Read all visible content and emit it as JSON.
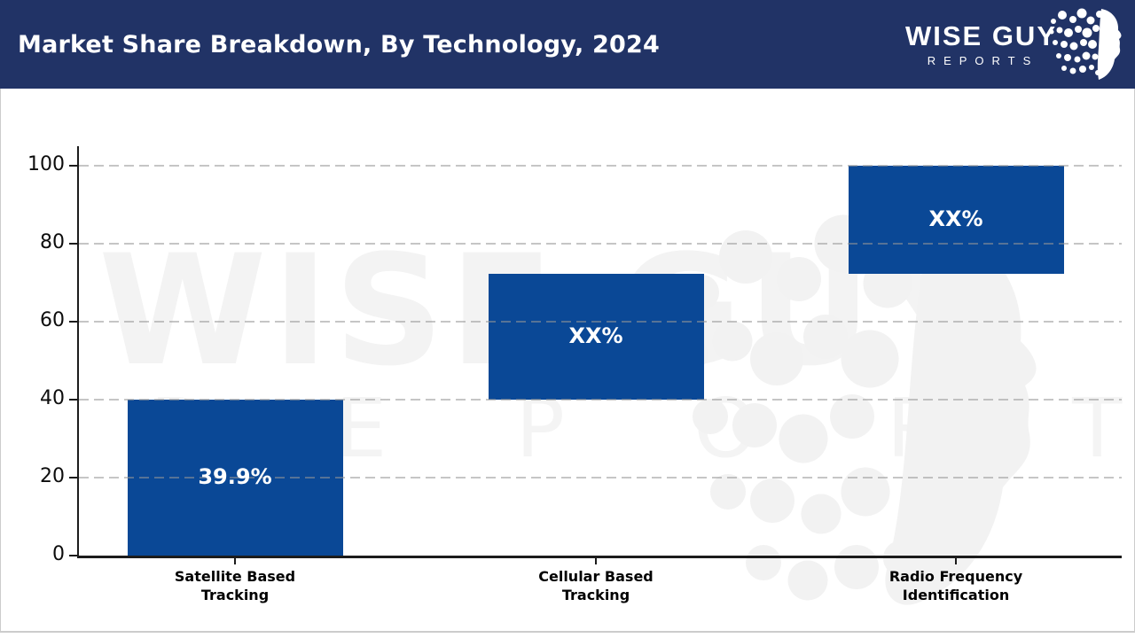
{
  "header": {
    "title": "Market Share Breakdown, By Technology, 2024",
    "bg_color": "#213366",
    "logo": {
      "line1": "WISE GUY",
      "line2": "REPORTS"
    }
  },
  "watermark": {
    "line1": "WISE GUY",
    "line2": "REPORTS"
  },
  "chart_data": {
    "type": "bar",
    "subtype": "waterfall-breakdown",
    "title": "Market Share Breakdown, By Technology, 2024",
    "categories": [
      "Satellite Based Tracking",
      "Cellular Based Tracking",
      "Radio Frequency Identification"
    ],
    "category_label_lines": [
      [
        "Satellite Based",
        "Tracking"
      ],
      [
        "Cellular Based",
        "Tracking"
      ],
      [
        "Radio Frequency",
        "Identification"
      ]
    ],
    "segments": [
      {
        "category": "Satellite Based Tracking",
        "start": 0,
        "end": 39.9,
        "value": 39.9,
        "label": "39.9%"
      },
      {
        "category": "Cellular Based Tracking",
        "start": 39.9,
        "end": 72.3,
        "value": 32.4,
        "label": "XX%"
      },
      {
        "category": "Radio Frequency Identification",
        "start": 72.3,
        "end": 100,
        "value": 27.7,
        "label": "XX%"
      }
    ],
    "yticks": [
      0,
      20,
      40,
      60,
      80,
      100
    ],
    "ylim": [
      0,
      105
    ],
    "xlabel": "",
    "ylabel": "",
    "grid": "horizontal dashed, drawn above bars",
    "legend": "none",
    "bar_color": "#0a4896",
    "bar_label_color": "#ffffff"
  }
}
